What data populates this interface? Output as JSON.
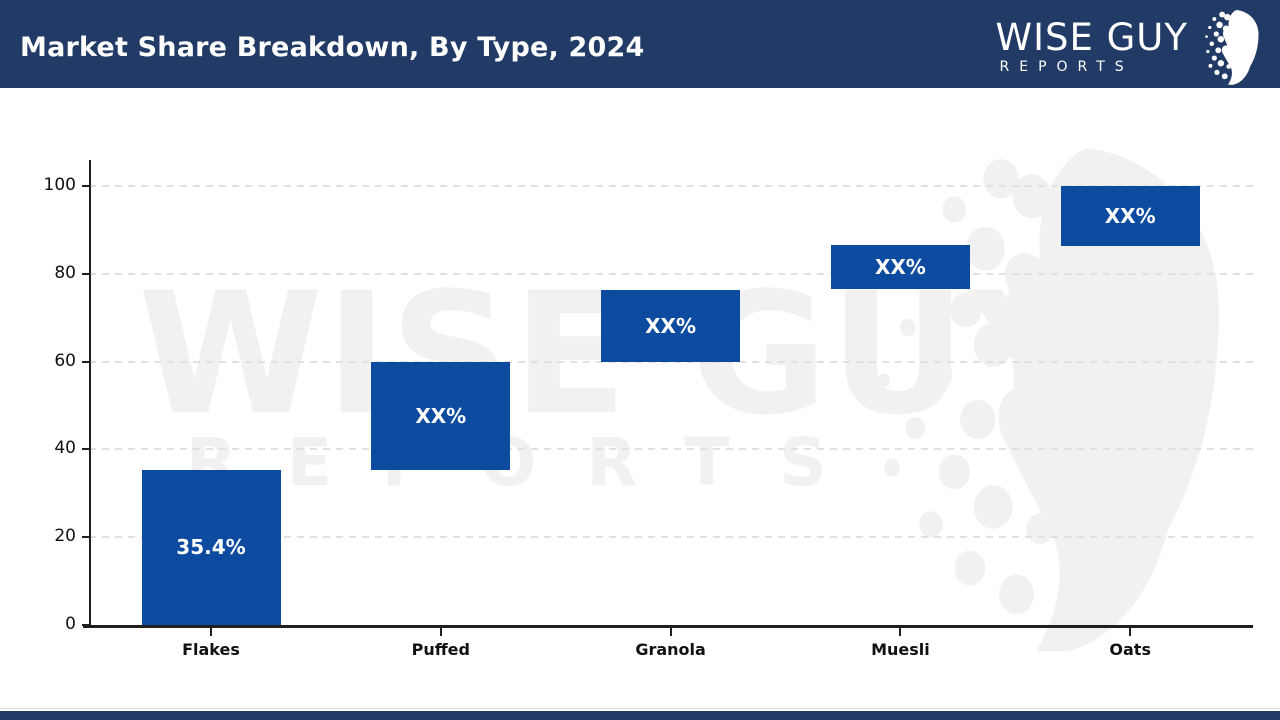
{
  "header": {
    "title": "Market Share Breakdown, By Type, 2024",
    "logo": {
      "line1": "WISE GUY",
      "line2": "REPORTS"
    }
  },
  "watermark": {
    "line1": "WISE GUY",
    "line2": "REPORTS"
  },
  "colors": {
    "header_bg": "#213a66",
    "footer_bg": "#213a66",
    "bar": "#0c4ba0",
    "bar_label": "#ffffff",
    "axis": "#1f1f1f",
    "grid": "#e1e1e1",
    "tick_label": "#111111",
    "watermark": "#f1f1f1"
  },
  "chart_data": {
    "type": "bar",
    "variant": "waterfall",
    "title": "Market Share Breakdown, By Type, 2024",
    "categories": [
      "Flakes",
      "Puffed",
      "Granola",
      "Muesli",
      "Oats"
    ],
    "segments": [
      {
        "category": "Flakes",
        "start": 0,
        "end": 35.4,
        "label": "35.4%"
      },
      {
        "category": "Puffed",
        "start": 35.4,
        "end": 59.8,
        "label": "XX%"
      },
      {
        "category": "Granola",
        "start": 59.8,
        "end": 76.4,
        "label": "XX%"
      },
      {
        "category": "Muesli",
        "start": 76.5,
        "end": 86.6,
        "label": "XX%"
      },
      {
        "category": "Oats",
        "start": 86.4,
        "end": 100,
        "label": "XX%"
      }
    ],
    "yticks": [
      0,
      20,
      40,
      60,
      80,
      100
    ],
    "ylim": [
      0,
      106
    ],
    "xlabel": "",
    "ylabel": "",
    "grid_style": "horizontal-dashed",
    "legend": "none"
  }
}
